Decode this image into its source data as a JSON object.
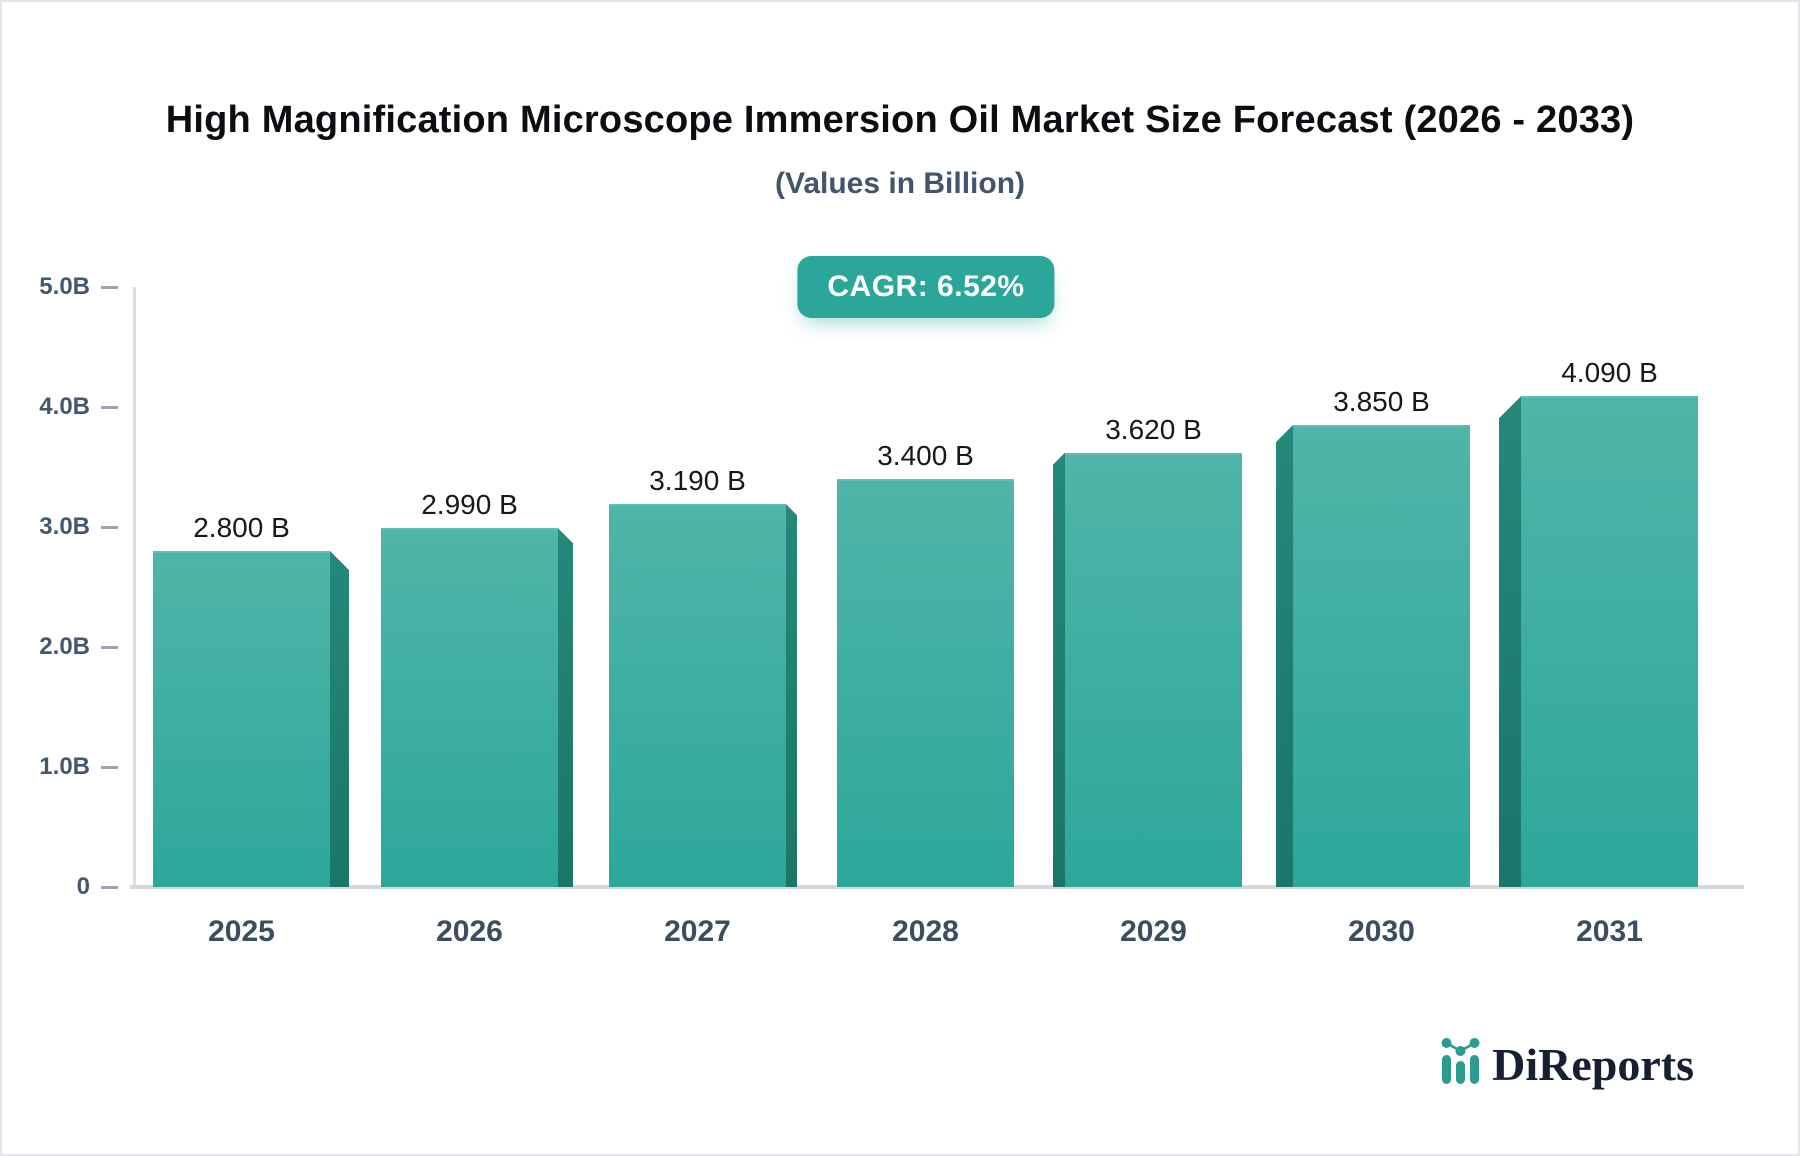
{
  "header": {
    "title": "High Magnification Microscope Immersion Oil Market Size Forecast (2026 - 2033)",
    "subtitle": "(Values in Billion)"
  },
  "badge": {
    "label": "CAGR: 6.52%",
    "bg_color": "#2aa79a",
    "text_color": "#ffffff"
  },
  "chart_data": {
    "type": "bar",
    "title": "High Magnification Microscope Immersion Oil Market Size Forecast (2026 - 2033)",
    "subtitle": "(Values in Billion)",
    "categories": [
      "2025",
      "2026",
      "2027",
      "2028",
      "2029",
      "2030",
      "2031"
    ],
    "values": [
      2.8,
      2.99,
      3.19,
      3.4,
      3.62,
      3.85,
      4.09
    ],
    "bar_labels": [
      "2.800 B",
      "2.990 B",
      "3.190 B",
      "3.400 B",
      "3.620 B",
      "3.850 B",
      "4.090 B"
    ],
    "ylabel": "",
    "xlabel": "",
    "ylim": [
      0,
      5
    ],
    "y_ticks": [
      {
        "value": 5,
        "label": "5.0B"
      },
      {
        "value": 4,
        "label": "4.0B"
      },
      {
        "value": 3,
        "label": "3.0B"
      },
      {
        "value": 2,
        "label": "2.0B"
      },
      {
        "value": 1,
        "label": "1.0B"
      },
      {
        "value": 0,
        "label": "0"
      }
    ],
    "grid": false,
    "legend": false,
    "annotation": "CAGR: 6.52%",
    "bar_color_top": "#4fb5a8",
    "bar_color_bottom": "#2da79a",
    "bar_side_color": "#1f7e71",
    "side_widths": [
      19,
      15,
      11,
      0,
      12,
      17,
      22
    ]
  },
  "logo": {
    "text": "DiReports",
    "icon": "mini-bar-chart-logo-icon",
    "icon_color": "#2d9b90",
    "text_color": "#162031"
  }
}
